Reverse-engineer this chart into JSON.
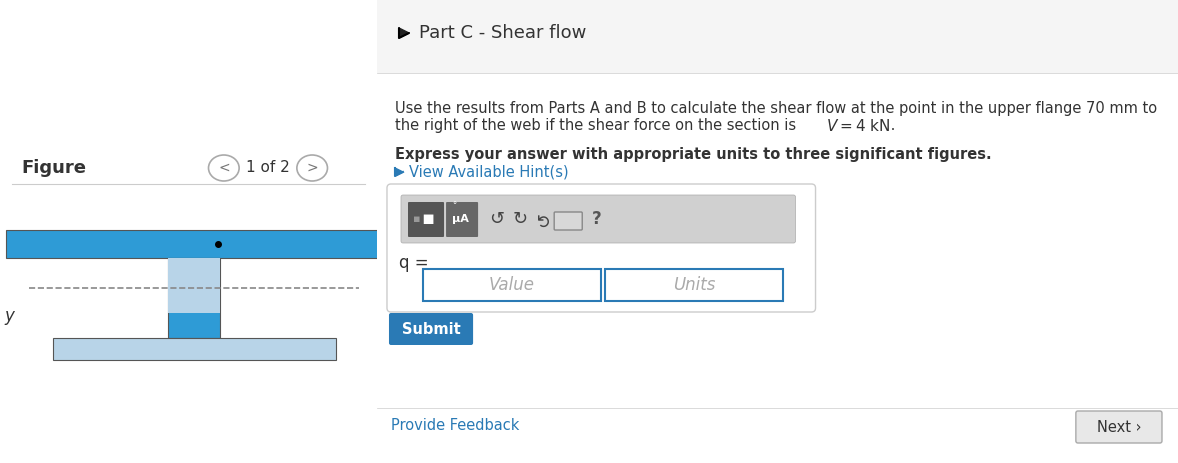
{
  "bg_color": "#ffffff",
  "left_panel_bg": "#ffffff",
  "right_panel_bg": "#f5f5f5",
  "part_c_header": "Part C - Shear flow",
  "body_text_line1": "Use the results from Parts A and B to calculate the shear flow at the point in the upper flange 70 mm to",
  "body_text_line2": "the right of the web if the shear force on the section is ",
  "body_text_eq": "V = 4 kN",
  "body_text_end": " .",
  "bold_text": "Express your answer with appropriate units to three significant figures.",
  "hint_text": "View Available Hint(s)",
  "q_label": "q =",
  "value_placeholder": "Value",
  "units_placeholder": "Units",
  "submit_text": "Submit",
  "figure_label": "Figure",
  "nav_text": "1 of 2",
  "feedback_text": "Provide Feedback",
  "next_text": "Next ›",
  "header_color": "#e8e8e8",
  "hint_color": "#2a7ab5",
  "submit_color": "#2a7ab5",
  "submit_text_color": "#ffffff",
  "divider_color": "#cccccc",
  "text_color": "#333333",
  "flange_color_top": "#2e9bd6",
  "flange_color_bottom": "#b8d4e8",
  "web_color": "#2e9bd6",
  "outline_color": "#555555",
  "dashed_color": "#888888",
  "arrow_color": "#333333",
  "toolbar_bg": "#d0d0d0",
  "toolbar_border": "#aaaaaa",
  "input_border": "#2a7ab5",
  "input_bg": "#ffffff",
  "next_btn_bg": "#e8e8e8",
  "next_btn_border": "#aaaaaa"
}
